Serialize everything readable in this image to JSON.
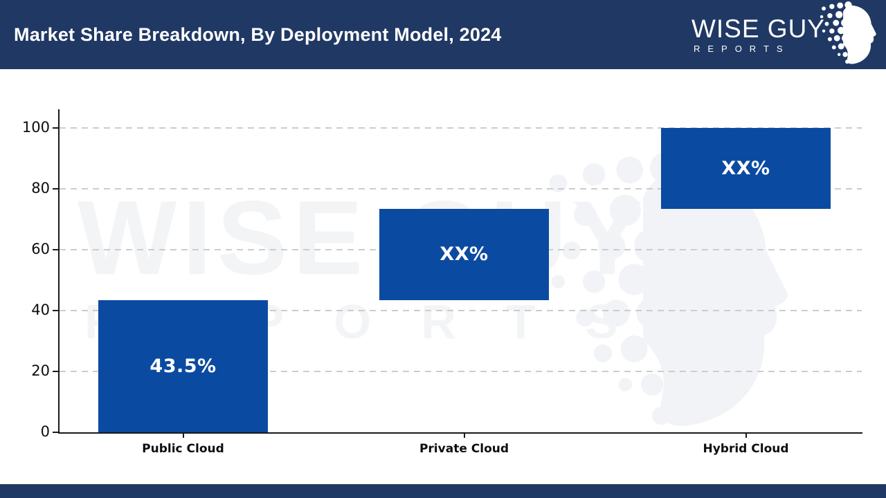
{
  "header": {
    "title": "Market Share Breakdown, By Deployment Model, 2024",
    "logo": {
      "line1": "WISE GUY",
      "line2": "REPORTS"
    }
  },
  "watermark": {
    "line1": "WISE GUY",
    "line2": "REPORTS"
  },
  "chart_data": {
    "type": "bar",
    "subtype": "waterfall",
    "title": "Market Share Breakdown, By Deployment Model, 2024",
    "categories": [
      "Public Cloud",
      "Private Cloud",
      "Hybrid Cloud"
    ],
    "segments": [
      {
        "category": "Public Cloud",
        "start": 0,
        "end": 43.5,
        "label": "43.5%"
      },
      {
        "category": "Private Cloud",
        "start": 43.5,
        "end": 73.4,
        "label": "XX%"
      },
      {
        "category": "Hybrid Cloud",
        "start": 73.4,
        "end": 100,
        "label": "XX%"
      }
    ],
    "xlabel": "",
    "ylabel": "",
    "ylim": [
      0,
      105
    ],
    "yticks": [
      0,
      20,
      40,
      60,
      80,
      100
    ],
    "grid": "horizontal-dashed",
    "legend": "none",
    "bar_color": "#0B4AA1",
    "bar_label_color": "#FFFFFF",
    "axis_color": "#1A1A1A",
    "gridline_color": "#CCCCCC",
    "header_color": "#203864",
    "watermark_color": "#F3F4F6"
  }
}
